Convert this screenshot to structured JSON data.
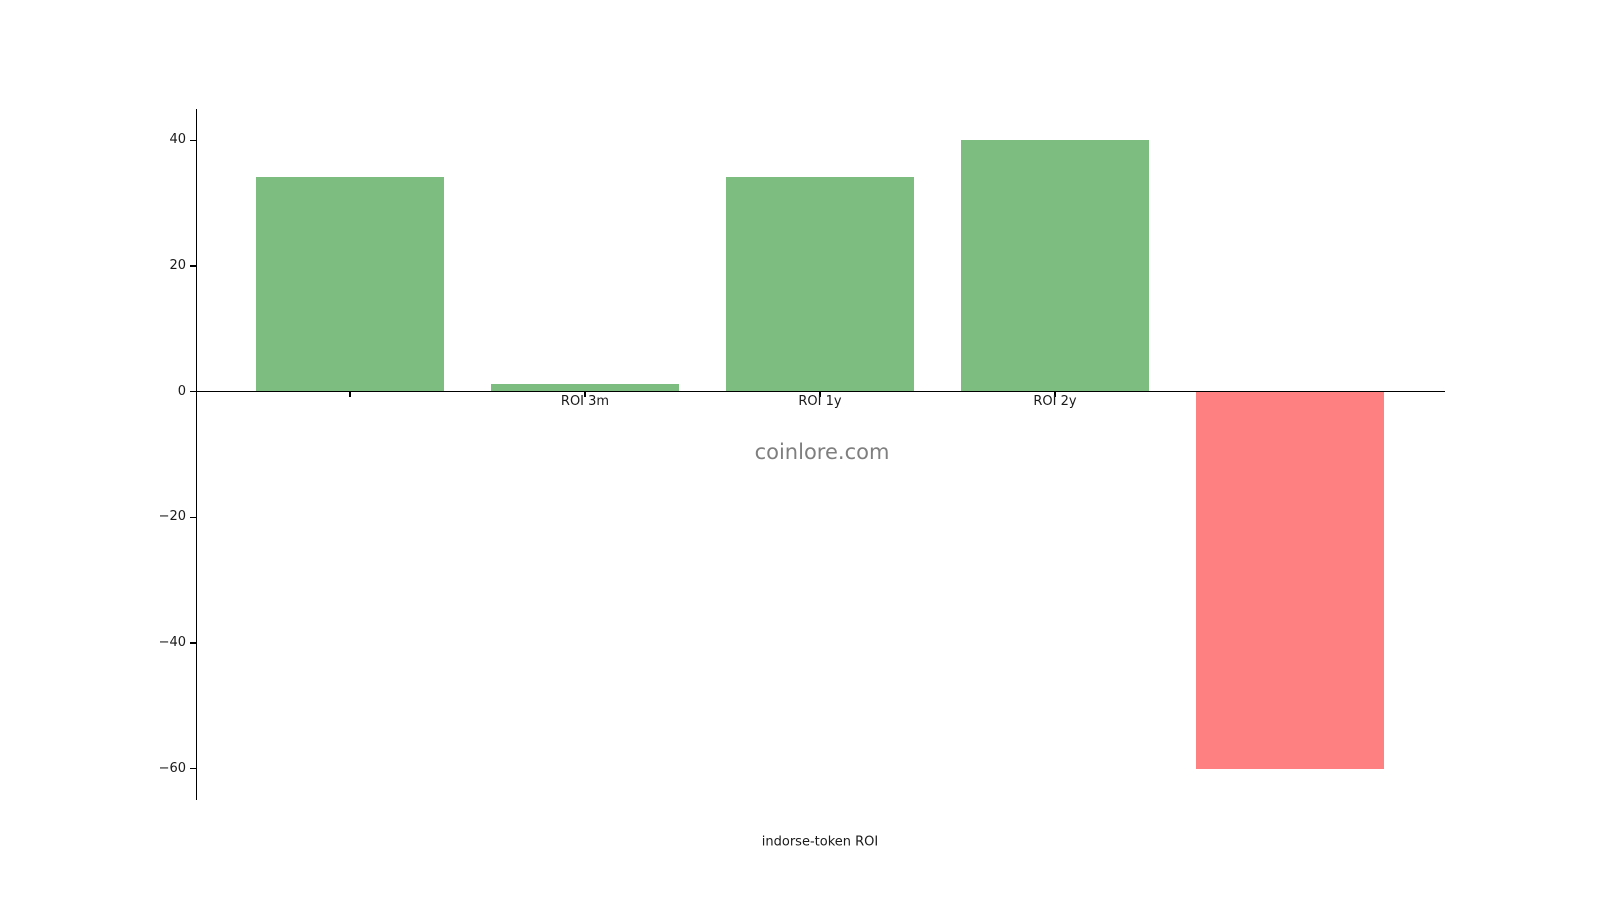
{
  "page": {
    "background": "#ffffff"
  },
  "watermark": {
    "text": "coinlore.com",
    "color": "#7f7f7f"
  },
  "chart_data": {
    "type": "bar",
    "title": "indorse-token ROI",
    "categories": [
      "",
      "ROI 3m",
      "ROI 1y",
      "ROI 2y",
      ""
    ],
    "values": [
      34.2,
      1.3,
      34.2,
      40.1,
      -60
    ],
    "bar_colors": [
      "#7dbe80",
      "#7dbe80",
      "#7dbe80",
      "#7dbe80",
      "#ff8081"
    ],
    "positive_color": "#7dbe80",
    "negative_color": "#ff8081",
    "xlabel": "",
    "ylabel": "",
    "yticks": [
      40,
      20,
      0,
      -20,
      -40,
      -60
    ],
    "ytick_labels": [
      "40",
      "20",
      "0",
      "−20",
      "−40",
      "−60"
    ],
    "ylim": [
      -65,
      45
    ],
    "grid": false,
    "legend": null,
    "axis_color": "#000000",
    "text_color": "#1a1a1a"
  }
}
